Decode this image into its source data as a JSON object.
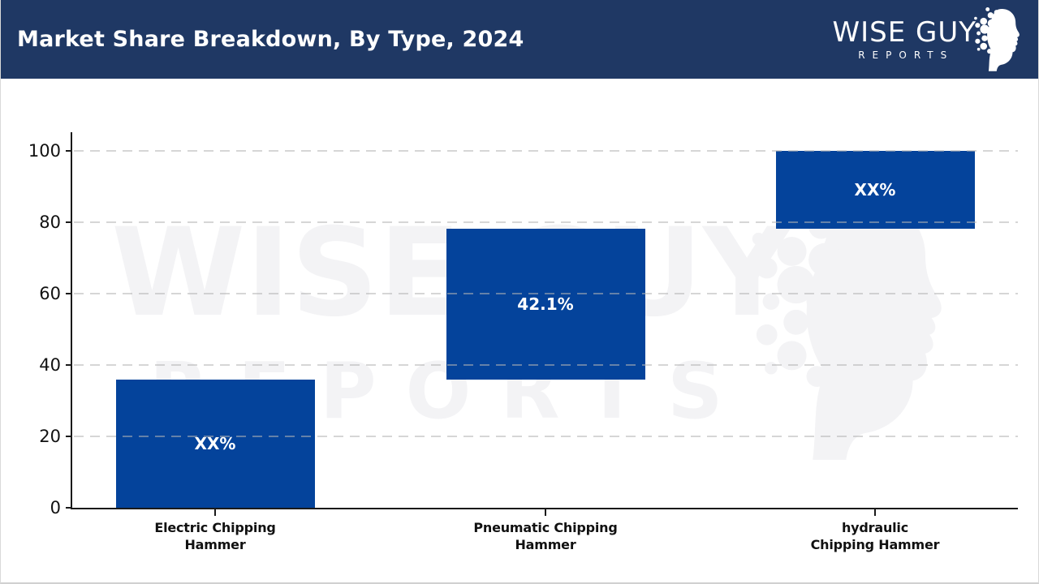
{
  "header": {
    "title": "Market Share Breakdown, By Type, 2024",
    "logo": {
      "name": "WISE GUY",
      "sub": "REPORTS"
    },
    "bg_color": "#1f3864"
  },
  "watermark": {
    "line1": "WISE GUY",
    "line2": "REPORTS"
  },
  "chart_data": {
    "type": "bar",
    "subtype": "waterfall",
    "title": "Market Share Breakdown, By Type, 2024",
    "categories": [
      [
        "Electric Chipping",
        "Hammer"
      ],
      [
        "Pneumatic Chipping",
        "Hammer"
      ],
      [
        "hydraulic",
        "Chipping Hammer"
      ]
    ],
    "series": [
      {
        "name": "Electric Chipping Hammer",
        "start": 0,
        "end": 36,
        "label": "XX%"
      },
      {
        "name": "Pneumatic Chipping Hammer",
        "start": 36,
        "end": 78.1,
        "label": "42.1%"
      },
      {
        "name": "hydraulic Chipping Hammer",
        "start": 78.1,
        "end": 100,
        "label": "XX%"
      }
    ],
    "xlabel": "",
    "ylabel": "",
    "ylim": [
      0,
      100
    ],
    "yticks": [
      0,
      20,
      40,
      60,
      80,
      100
    ],
    "grid": {
      "on": true,
      "style": "dashed",
      "axis": "y"
    },
    "legend": "none",
    "bar_color": "#04439b",
    "bar_label_color": "#ffffff",
    "axis_color": "#1a1a1a"
  }
}
